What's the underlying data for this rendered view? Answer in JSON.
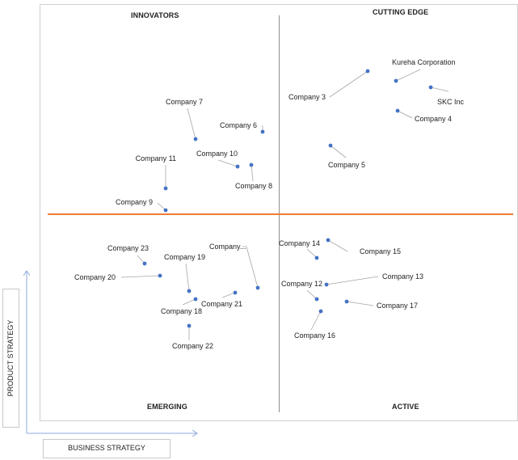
{
  "chart_data": {
    "type": "scatter",
    "quadrants": {
      "top_left": "INNOVATORS",
      "top_right": "CUTTING EDGE",
      "bottom_left": "EMERGING",
      "bottom_right": "ACTIVE"
    },
    "xlabel": "BUSINESS STRATEGY",
    "ylabel": "PRODUCT STRATEGY",
    "colors": {
      "point": "#4472c4",
      "quadrant_divider": "#ed7d31",
      "leader": "#a6a6a6"
    },
    "points": [
      {
        "label": "Kureha Corporation"
      },
      {
        "label": "SKC Inc"
      },
      {
        "label": "Company 3"
      },
      {
        "label": "Company 4"
      },
      {
        "label": "Company 5"
      },
      {
        "label": "Company 6"
      },
      {
        "label": "Company 7"
      },
      {
        "label": "Company 8"
      },
      {
        "label": "Company 9"
      },
      {
        "label": "Company 10"
      },
      {
        "label": "Company 11"
      },
      {
        "label": "Company 12"
      },
      {
        "label": "Company 13"
      },
      {
        "label": "Company 14"
      },
      {
        "label": "Company 15"
      },
      {
        "label": "Company 16"
      },
      {
        "label": "Company 17"
      },
      {
        "label": "Company 18"
      },
      {
        "label": "Company 19"
      },
      {
        "label": "Company 20"
      },
      {
        "label": "Company 21"
      },
      {
        "label": "Company 22"
      },
      {
        "label": "Company 23"
      },
      {
        "label": "Company..."
      }
    ]
  }
}
